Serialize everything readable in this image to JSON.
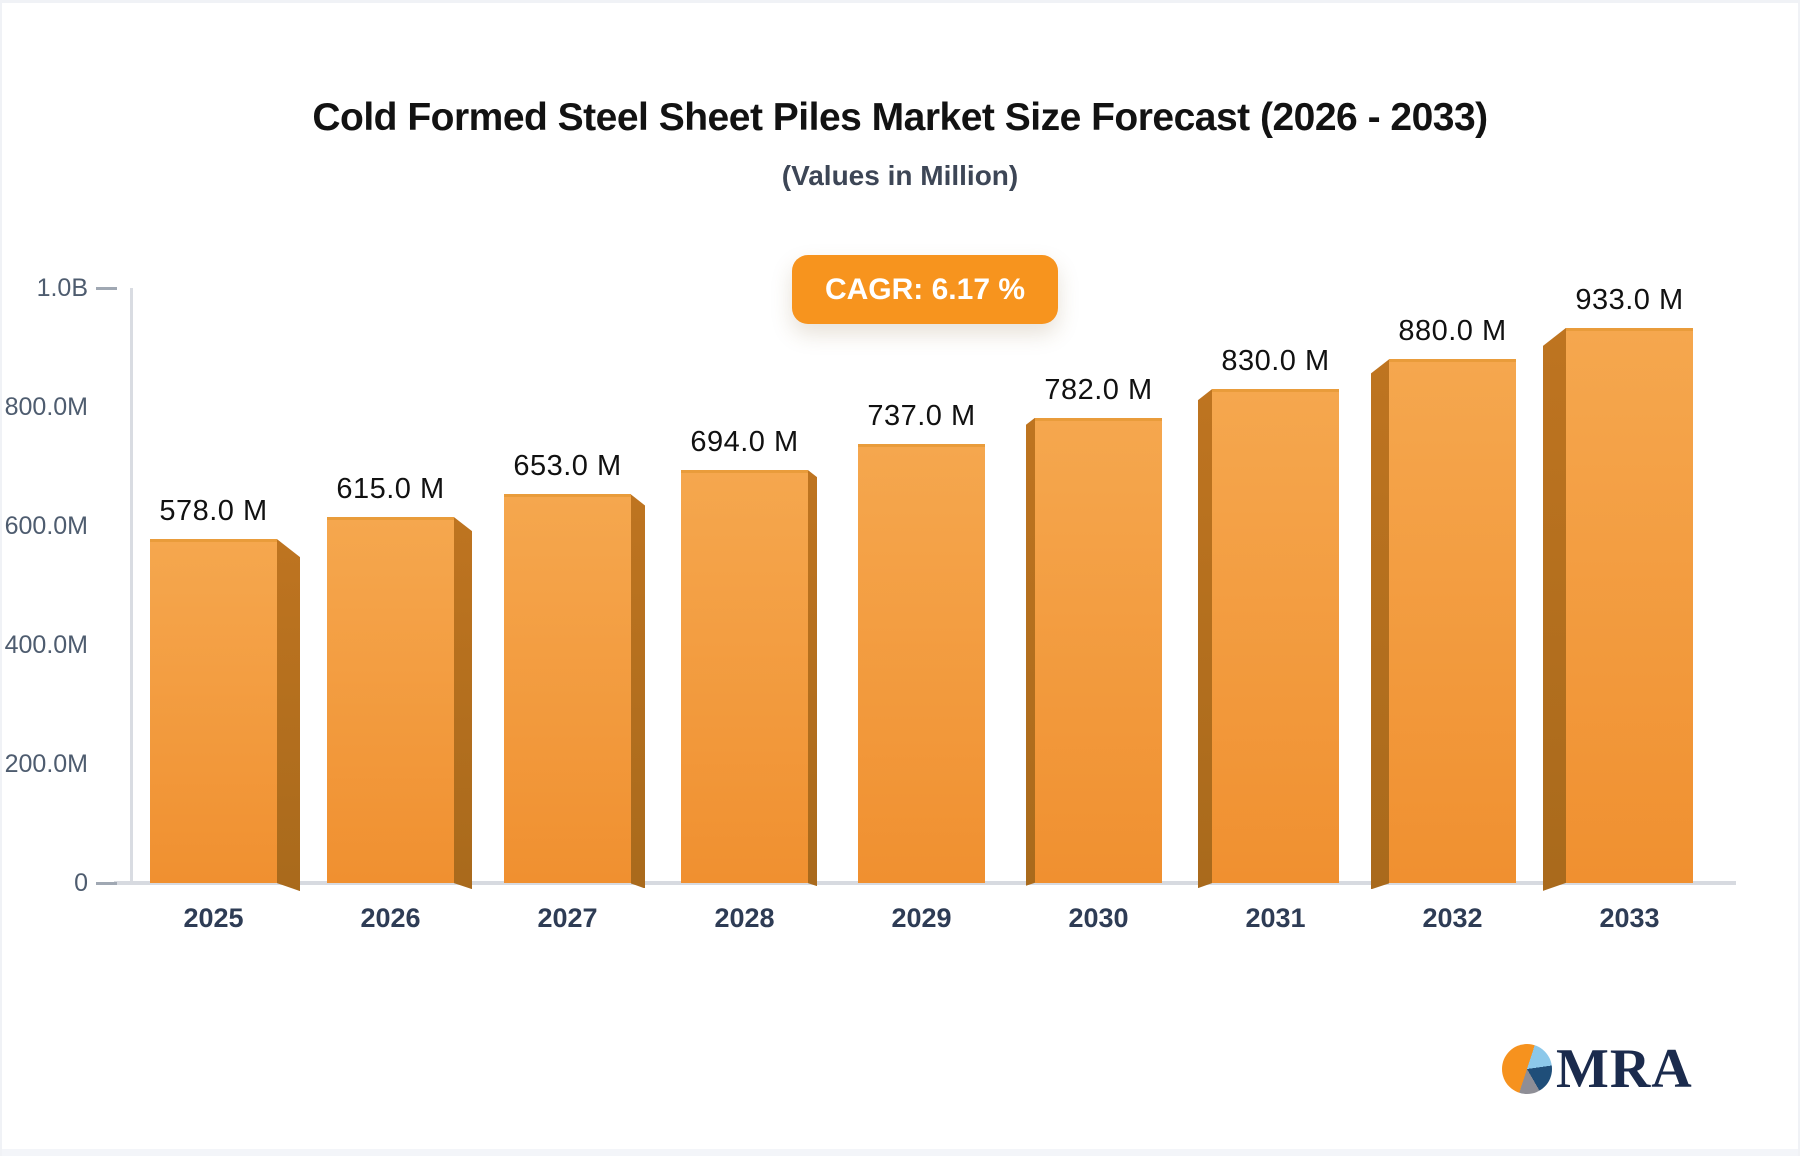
{
  "header": {
    "title": "Cold Formed Steel Sheet Piles Market Size Forecast (2026 - 2033)",
    "subtitle": "(Values in Million)"
  },
  "badge": {
    "label": "CAGR: 6.17 %",
    "bg_color": "#f7941e",
    "text_color": "#ffffff"
  },
  "chart_data": {
    "type": "bar",
    "title": "Cold Formed Steel Sheet Piles Market Size Forecast (2026 - 2033)",
    "subtitle": "(Values in Million)",
    "unit": "USD Million",
    "categories": [
      "2025",
      "2026",
      "2027",
      "2028",
      "2029",
      "2030",
      "2031",
      "2032",
      "2033"
    ],
    "values": [
      578,
      615,
      653,
      694,
      737,
      782,
      830,
      880,
      933
    ],
    "value_labels": [
      "578.0 M",
      "615.0 M",
      "653.0 M",
      "694.0 M",
      "737.0 M",
      "782.0 M",
      "830.0 M",
      "880.0 M",
      "933.0 M"
    ],
    "ylabel": "",
    "xlabel": "",
    "ylim_millions": [
      0,
      1000
    ],
    "grid": false,
    "legend": false,
    "y_ticks": [
      {
        "label": "1.0B",
        "value": 1000,
        "dash": true
      },
      {
        "label": "800.0M",
        "value": 800,
        "dash": false
      },
      {
        "label": "600.0M",
        "value": 600,
        "dash": false
      },
      {
        "label": "400.0M",
        "value": 400,
        "dash": false
      },
      {
        "label": "200.0M",
        "value": 200,
        "dash": false
      },
      {
        "label": "0",
        "value": 0,
        "dash": true
      }
    ],
    "colors": {
      "bar_front_top": "#f5a74e",
      "bar_front_bottom": "#f09030",
      "bar_top_edge": "#e99c3b",
      "bar_side": "#be7420",
      "bar_side_dark": "#a96a1c",
      "axis_line": "#d9dce2",
      "tick": "#a0a8b3",
      "value_label": "#111111",
      "year_label": "#2e3c55",
      "y_label": "#4e5c6f"
    }
  },
  "logo": {
    "text": "MRA",
    "pie_colors": {
      "orange": "#f6921e",
      "light_blue": "#8cc8ea",
      "navy": "#1f4e79",
      "gray": "#8e8e96"
    },
    "text_color": "#1b2b4d"
  }
}
